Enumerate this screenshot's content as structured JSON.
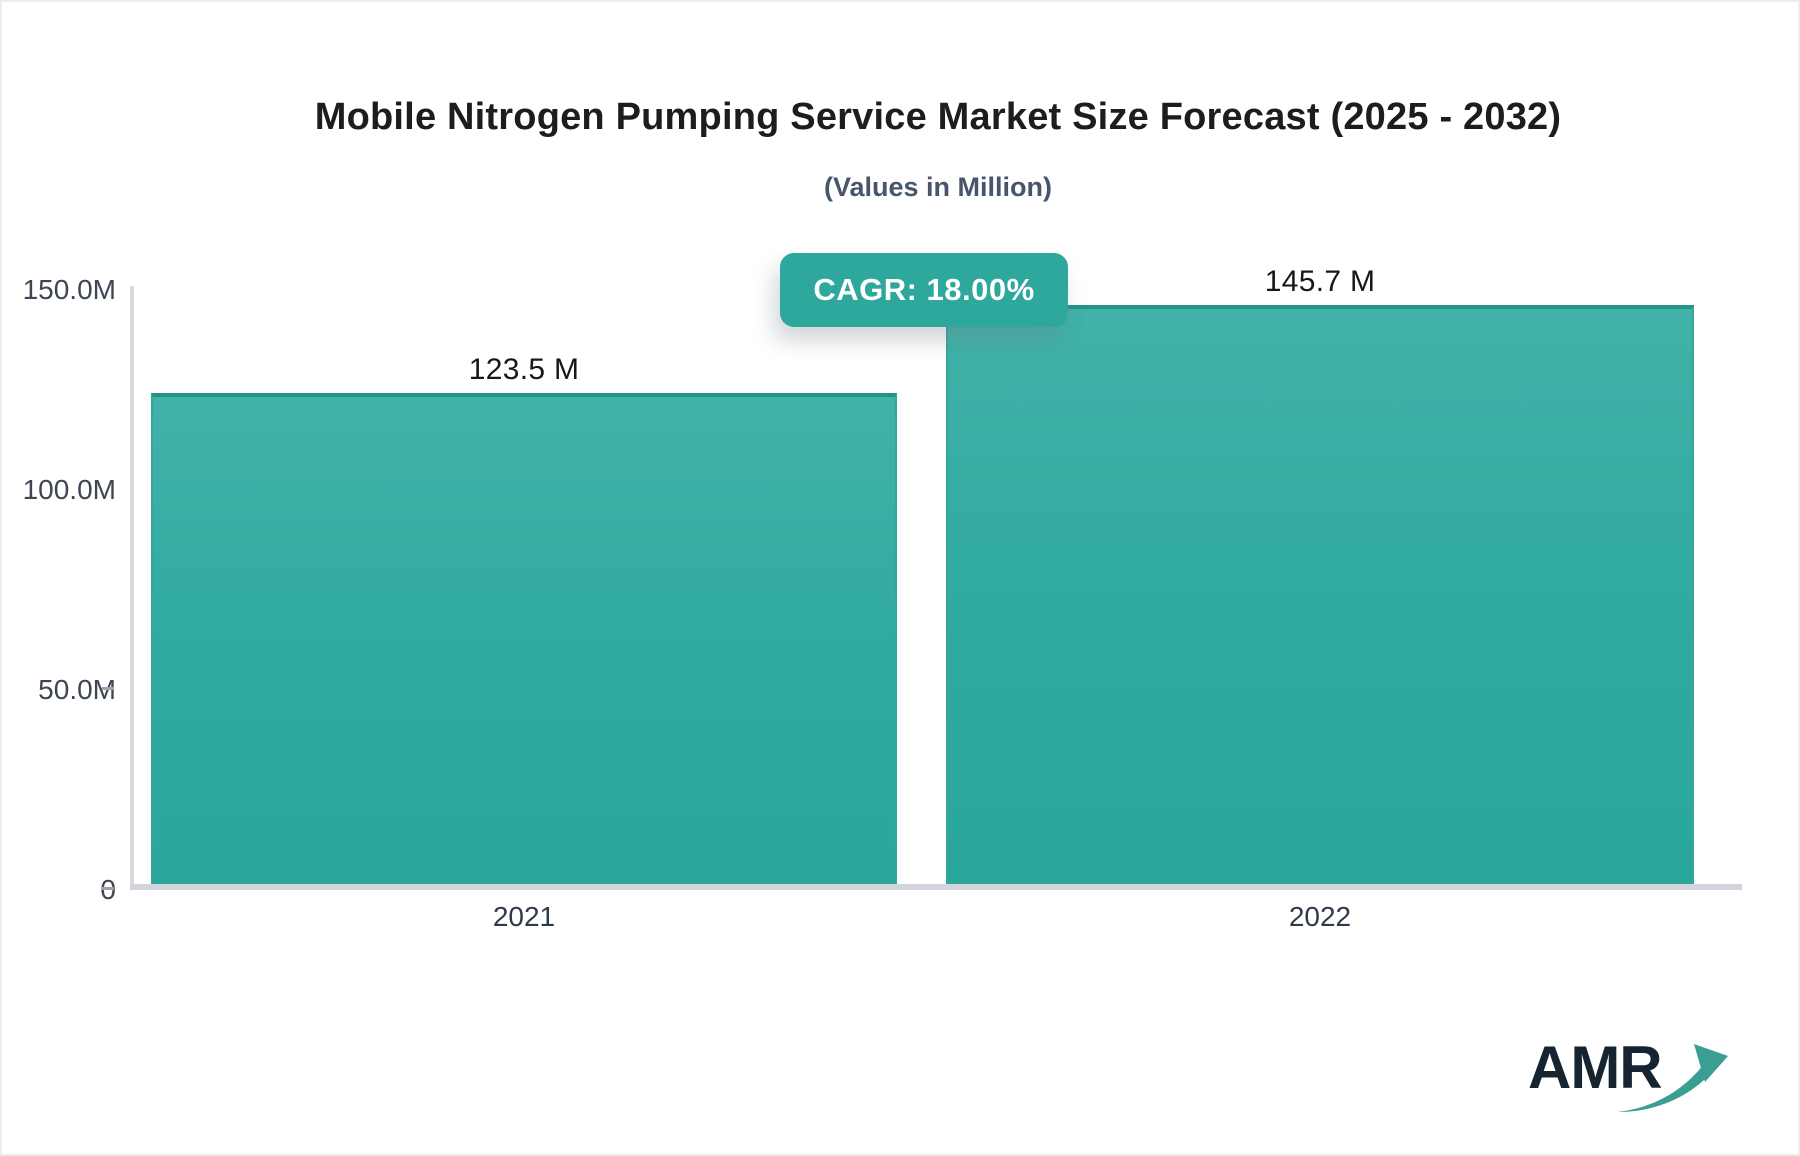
{
  "header": {
    "title": "Mobile Nitrogen Pumping Service Market Size Forecast (2025 - 2032)",
    "subtitle": "(Values in Million)"
  },
  "badge": {
    "label": "CAGR: 18.00%",
    "background": "#2ea89d",
    "text_color": "#ffffff"
  },
  "chart_data": {
    "type": "bar",
    "categories": [
      "2021",
      "2022"
    ],
    "values": [
      123.5,
      145.7
    ],
    "value_labels": [
      "123.5 M",
      "145.7 M"
    ],
    "title": "Mobile Nitrogen Pumping Service Market Size Forecast (2025 - 2032)",
    "subtitle": "(Values in Million)",
    "unit": "Million",
    "cagr": "18.00%",
    "ylim": [
      0,
      150
    ],
    "yticks": [
      "150.0M",
      "100.0M",
      "50.0M",
      "0"
    ],
    "xlabel": "",
    "ylabel": "",
    "grid": false,
    "legend": false,
    "bar_color_top": "#41b2a8",
    "bar_color_bottom": "#2ba69a",
    "axis_color": "#d2d5db"
  },
  "logo": {
    "text": "AMR",
    "arrow_color": "#3a9e92"
  }
}
